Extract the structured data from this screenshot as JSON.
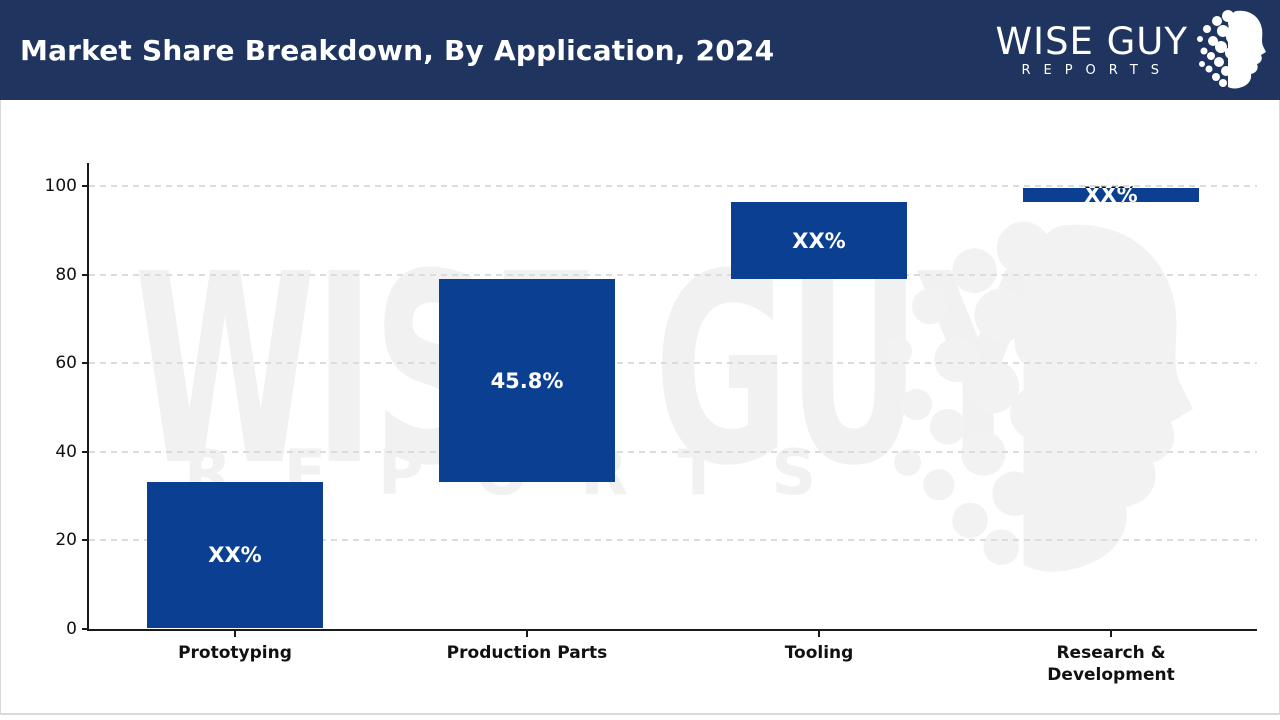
{
  "header": {
    "title": "Market Share Breakdown, By Application, 2024",
    "logo": {
      "wordmark": "WISE GUY",
      "subtext": "REPORTS"
    }
  },
  "watermark": {
    "line1": "WISE GUY",
    "line2": "REPORTS"
  },
  "chart_data": {
    "type": "bar",
    "subtype": "waterfall",
    "title": "Market Share Breakdown, By Application, 2024",
    "categories": [
      "Prototyping",
      "Production Parts",
      "Tooling",
      "Research & Development"
    ],
    "segments": [
      {
        "category": "Prototyping",
        "start": 0,
        "end": 33.1,
        "value_label": "XX%"
      },
      {
        "category": "Production Parts",
        "start": 33.1,
        "end": 78.9,
        "value_label": "45.8%"
      },
      {
        "category": "Tooling",
        "start": 78.9,
        "end": 96.4,
        "value_label": "XX%"
      },
      {
        "category": "Research & Development",
        "start": 96.4,
        "end": 99.6,
        "value_label": "XX%"
      }
    ],
    "yticks": [
      0,
      20,
      40,
      60,
      80,
      100
    ],
    "ylim": [
      0,
      105
    ],
    "xlabel": "",
    "ylabel": "",
    "legend": "none",
    "grid": "horizontal-dashed",
    "bar_color": "#0b3f92",
    "grid_color": "#dcdcdc",
    "axis_color": "#1a1a1a",
    "header_color": "#1f3560"
  }
}
